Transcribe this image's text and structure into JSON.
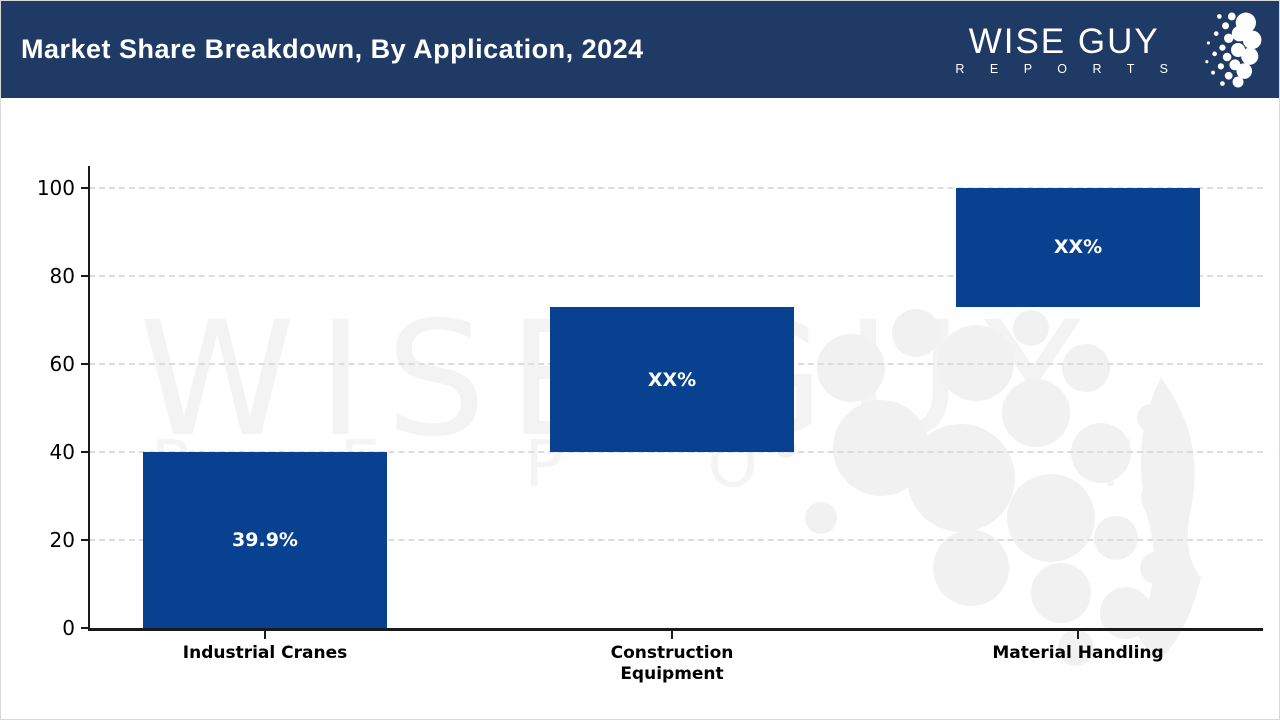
{
  "page": {
    "background": "#ffffff",
    "border_color": "#d9d9d9"
  },
  "header": {
    "title": "Market Share Breakdown, By Application, 2024",
    "background": "#203a66",
    "logo": {
      "line1": "WISE GUY",
      "line2": "R E P O R T S"
    }
  },
  "watermark": {
    "line1": "WISE GUY",
    "line2": "R E P O R T S"
  },
  "chart_data": {
    "type": "bar",
    "subtype": "stacked-waterfall",
    "title": "Market Share Breakdown, By Application, 2024",
    "categories": [
      "Industrial Cranes",
      "Construction\nEquipment",
      "Material Handling"
    ],
    "series": [
      {
        "name": "Industrial Cranes",
        "start": 0,
        "end": 39.9,
        "label": "39.9%"
      },
      {
        "name": "Construction Equipment",
        "start": 39.9,
        "end": 73,
        "label": "XX%"
      },
      {
        "name": "Material Handling",
        "start": 73,
        "end": 100,
        "label": "XX%"
      }
    ],
    "xlabel": "",
    "ylabel": "",
    "yticks": [
      0,
      20,
      40,
      60,
      80,
      100
    ],
    "ylim": [
      0,
      105
    ],
    "grid": {
      "axis": "y",
      "style": "dashed",
      "color": "#dcdcdc"
    },
    "legend": "none",
    "bar_color": "#08418f",
    "bar_label_color": "#ffffff",
    "axis_color": "#1a1a1a"
  }
}
